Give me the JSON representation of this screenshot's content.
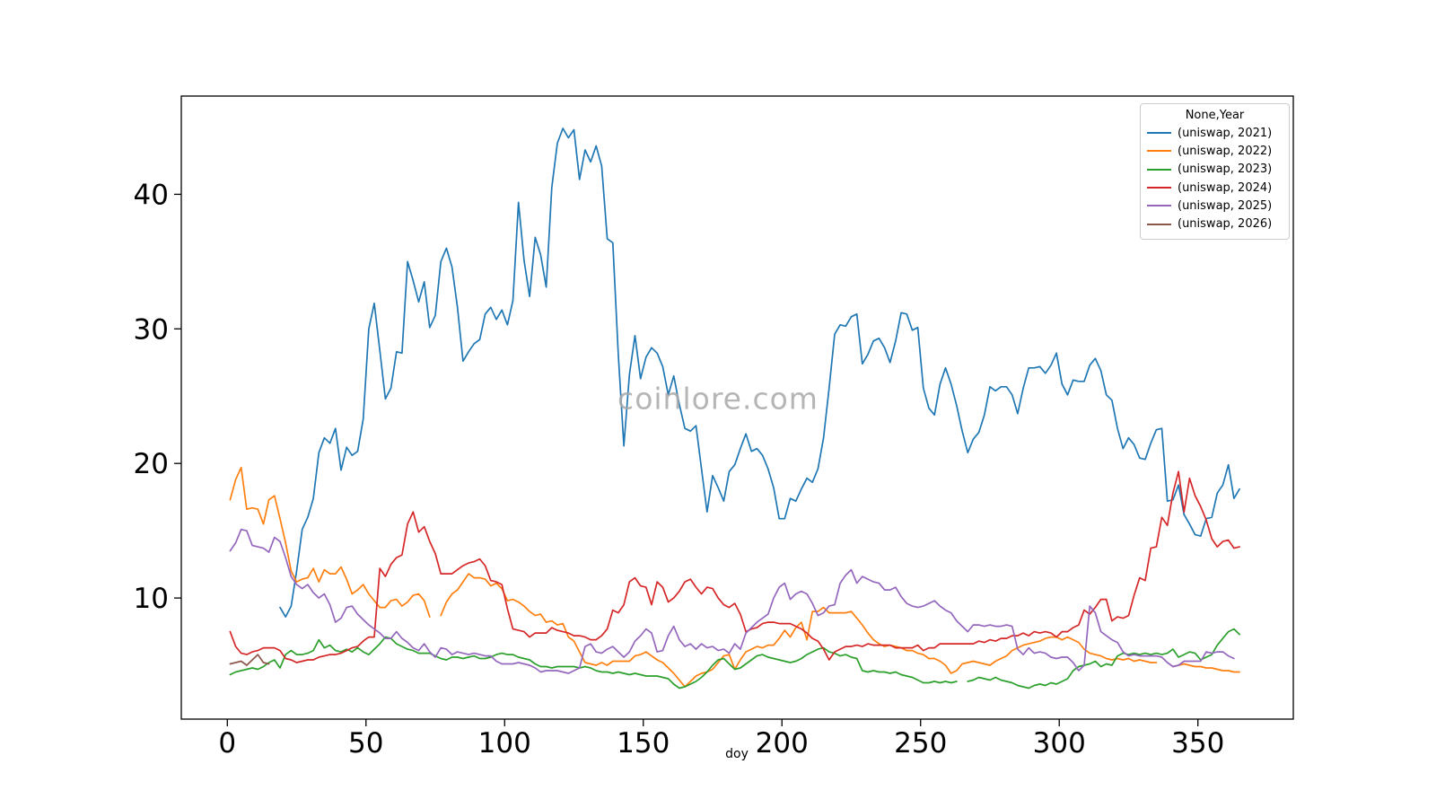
{
  "chart_data": {
    "type": "line",
    "title": "",
    "xlabel": "doy",
    "ylabel": "",
    "watermark": "coinlore.com",
    "grid": false,
    "xlim": [
      -16.6,
      384.4
    ],
    "ylim": [
      1.0,
      47.3
    ],
    "x_ticks": [
      0,
      50,
      100,
      150,
      200,
      250,
      300,
      350
    ],
    "y_ticks": [
      10,
      20,
      30,
      40
    ],
    "legend": {
      "title": "None,Year",
      "position": "upper right"
    },
    "series": [
      {
        "name": "(uniswap, 2021)",
        "color": "#1f77b4",
        "start_doy": 19,
        "doy_step": 2,
        "values": [
          9.3,
          8.6,
          9.4,
          12.0,
          15.1,
          16.0,
          17.4,
          20.8,
          21.9,
          21.5,
          22.6,
          19.5,
          21.2,
          20.6,
          20.9,
          23.3,
          30.0,
          31.9,
          28.4,
          24.8,
          25.6,
          28.3,
          28.2,
          35.0,
          33.6,
          32.0,
          33.5,
          30.1,
          31.0,
          35.0,
          36.0,
          34.6,
          31.6,
          27.6,
          28.3,
          28.9,
          29.2,
          31.1,
          31.6,
          30.7,
          31.4,
          30.3,
          32.1,
          39.4,
          35.1,
          32.4,
          36.8,
          35.5,
          33.1,
          40.5,
          43.8,
          44.9,
          44.2,
          44.8,
          41.1,
          43.3,
          42.4,
          43.6,
          42.1,
          36.7,
          36.4,
          28.1,
          21.3,
          26.6,
          29.5,
          26.3,
          27.9,
          28.6,
          28.2,
          27.2,
          25.1,
          26.5,
          24.4,
          22.6,
          22.4,
          22.8,
          19.6,
          16.4,
          19.1,
          18.2,
          17.2,
          19.4,
          19.9,
          21.1,
          22.2,
          20.9,
          21.1,
          20.6,
          19.6,
          18.2,
          15.9,
          15.9,
          17.4,
          17.2,
          18.1,
          18.9,
          18.6,
          19.6,
          21.9,
          25.6,
          29.6,
          30.3,
          30.2,
          30.9,
          31.1,
          27.4,
          28.1,
          29.1,
          29.3,
          28.6,
          27.5,
          29.1,
          31.2,
          31.1,
          29.9,
          30.1,
          25.6,
          24.1,
          23.6,
          25.9,
          27.1,
          25.9,
          24.3,
          22.4,
          20.8,
          21.8,
          22.3,
          23.6,
          25.7,
          25.4,
          25.7,
          25.7,
          25.1,
          23.7,
          25.6,
          27.1,
          27.1,
          27.2,
          26.7,
          27.3,
          28.2,
          25.9,
          25.1,
          26.2,
          26.1,
          26.1,
          27.3,
          27.8,
          26.9,
          25.1,
          24.7,
          22.6,
          21.1,
          21.9,
          21.4,
          20.4,
          20.3,
          21.5,
          22.5,
          22.6,
          17.2,
          17.3,
          18.4,
          16.2,
          15.5,
          14.7,
          14.6,
          15.9,
          16.0,
          17.8,
          18.4,
          19.9,
          17.4,
          18.1
        ]
      },
      {
        "name": "(uniswap, 2022)",
        "color": "#ff7f0e",
        "start_doy": 1,
        "doy_step": 2,
        "values": [
          17.3,
          18.8,
          19.7,
          16.6,
          16.7,
          16.6,
          15.5,
          17.3,
          17.6,
          15.9,
          14.1,
          12.0,
          11.2,
          11.4,
          11.5,
          12.2,
          11.2,
          12.1,
          11.8,
          11.8,
          12.3,
          11.4,
          10.3,
          10.6,
          11.0,
          10.3,
          9.8,
          9.3,
          9.3,
          9.8,
          9.9,
          9.4,
          9.7,
          10.2,
          10.3,
          9.8,
          8.6,
          null,
          8.7,
          9.7,
          10.3,
          10.6,
          11.2,
          11.8,
          11.5,
          11.5,
          11.4,
          10.9,
          11.1,
          10.7,
          9.8,
          9.9,
          9.7,
          9.4,
          9.0,
          8.7,
          8.8,
          8.2,
          8.3,
          8.0,
          8.1,
          7.1,
          6.8,
          6.0,
          5.2,
          5.1,
          5.0,
          5.2,
          5.0,
          5.3,
          5.3,
          5.3,
          5.3,
          5.7,
          5.8,
          6.0,
          5.7,
          5.4,
          5.2,
          4.8,
          4.4,
          3.9,
          3.4,
          3.8,
          4.2,
          4.4,
          4.5,
          4.7,
          5.2,
          5.7,
          5.8,
          4.7,
          5.4,
          6.0,
          6.2,
          6.4,
          6.3,
          6.5,
          6.5,
          7.0,
          7.6,
          7.1,
          7.8,
          8.2,
          6.9,
          9.0,
          9.0,
          9.3,
          8.9,
          8.9,
          8.9,
          8.9,
          9.0,
          8.5,
          8.0,
          7.4,
          6.9,
          6.6,
          6.4,
          6.5,
          6.4,
          6.3,
          6.1,
          6.1,
          5.9,
          5.8,
          5.5,
          5.5,
          5.3,
          5.0,
          4.4,
          4.6,
          5.1,
          5.2,
          5.3,
          5.2,
          5.1,
          5.0,
          5.3,
          5.5,
          5.7,
          6.1,
          6.3,
          6.5,
          6.6,
          6.7,
          6.8,
          7.0,
          7.1,
          7.1,
          6.9,
          7.1,
          6.9,
          6.7,
          6.2,
          5.9,
          5.8,
          5.7,
          5.5,
          5.4,
          5.5,
          5.4,
          5.5,
          5.3,
          5.4,
          5.3,
          5.2,
          5.2,
          null,
          null,
          4.9,
          5.0,
          5.1,
          5.0,
          4.9,
          4.9,
          4.8,
          4.8,
          4.7,
          4.6,
          4.6,
          4.5,
          4.5
        ]
      },
      {
        "name": "(uniswap, 2023)",
        "color": "#2ca02c",
        "start_doy": 1,
        "doy_step": 2,
        "values": [
          4.3,
          4.5,
          4.6,
          4.7,
          4.8,
          4.7,
          4.9,
          5.2,
          5.4,
          4.8,
          5.8,
          6.1,
          5.8,
          5.8,
          5.9,
          6.1,
          6.9,
          6.3,
          6.5,
          6.1,
          6.0,
          6.2,
          6.0,
          6.3,
          6.0,
          5.8,
          6.2,
          6.6,
          7.1,
          7.0,
          6.6,
          6.4,
          6.2,
          6.1,
          5.9,
          5.9,
          5.9,
          5.7,
          5.5,
          5.4,
          5.6,
          5.6,
          5.5,
          5.6,
          5.7,
          5.5,
          5.5,
          5.6,
          5.8,
          5.9,
          5.8,
          5.8,
          5.6,
          5.5,
          5.4,
          5.1,
          4.9,
          4.9,
          4.8,
          4.9,
          4.9,
          4.9,
          4.9,
          4.8,
          4.9,
          4.8,
          4.6,
          4.5,
          4.5,
          4.4,
          4.5,
          4.4,
          4.3,
          4.4,
          4.3,
          4.2,
          4.2,
          4.2,
          4.1,
          4.0,
          3.6,
          3.3,
          3.4,
          3.6,
          3.8,
          4.1,
          4.5,
          5.0,
          5.4,
          5.5,
          5.1,
          4.7,
          4.8,
          5.1,
          5.4,
          5.7,
          5.8,
          5.6,
          5.5,
          5.4,
          5.3,
          5.2,
          5.3,
          5.5,
          5.8,
          6.0,
          6.2,
          6.3,
          6.0,
          5.9,
          5.7,
          5.8,
          5.6,
          5.5,
          4.6,
          4.5,
          4.6,
          4.5,
          4.5,
          4.4,
          4.5,
          4.3,
          4.2,
          4.1,
          3.9,
          3.7,
          3.7,
          3.8,
          3.7,
          3.8,
          3.7,
          3.8,
          null,
          3.8,
          3.9,
          4.1,
          4.0,
          3.9,
          4.1,
          3.9,
          3.8,
          3.7,
          3.5,
          3.4,
          3.3,
          3.5,
          3.6,
          3.5,
          3.7,
          3.6,
          3.8,
          4.0,
          4.6,
          4.9,
          5.0,
          5.1,
          5.3,
          4.9,
          5.1,
          5.0,
          5.7,
          5.9,
          5.8,
          5.9,
          5.8,
          5.9,
          5.8,
          5.9,
          5.8,
          5.9,
          6.2,
          5.6,
          5.8,
          6.0,
          5.9,
          5.4,
          5.6,
          5.8,
          6.5,
          7.0,
          7.5,
          7.7,
          7.3
        ]
      },
      {
        "name": "(uniswap, 2024)",
        "color": "#d62728",
        "start_doy": 1,
        "doy_step": 2,
        "values": [
          7.5,
          6.4,
          5.9,
          5.8,
          6.0,
          6.1,
          6.3,
          6.3,
          6.3,
          6.1,
          5.5,
          5.4,
          5.2,
          5.3,
          5.4,
          5.4,
          5.6,
          5.7,
          5.8,
          5.8,
          5.9,
          6.1,
          6.3,
          6.4,
          6.8,
          7.1,
          7.1,
          12.2,
          11.6,
          12.5,
          13.0,
          13.2,
          15.5,
          16.4,
          14.9,
          15.3,
          14.2,
          13.3,
          11.8,
          11.8,
          11.8,
          12.1,
          12.4,
          12.6,
          12.7,
          12.9,
          12.4,
          11.3,
          11.2,
          11.0,
          9.2,
          7.7,
          7.6,
          7.5,
          7.1,
          7.4,
          7.4,
          7.4,
          7.8,
          7.6,
          7.5,
          7.4,
          7.2,
          7.2,
          7.1,
          6.9,
          6.9,
          7.2,
          7.7,
          9.1,
          8.9,
          9.5,
          11.2,
          11.5,
          10.9,
          10.8,
          9.5,
          11.2,
          10.8,
          9.7,
          10.0,
          10.5,
          11.2,
          11.4,
          10.8,
          10.3,
          10.8,
          10.7,
          10.0,
          9.5,
          9.3,
          9.6,
          8.8,
          7.5,
          7.7,
          7.8,
          8.1,
          8.2,
          8.2,
          8.1,
          8.1,
          8.1,
          7.9,
          7.7,
          7.4,
          7.0,
          6.8,
          6.2,
          5.4,
          6.0,
          6.2,
          6.4,
          6.4,
          6.5,
          6.4,
          6.6,
          6.5,
          6.5,
          6.5,
          6.5,
          6.3,
          6.3,
          6.3,
          6.3,
          6.5,
          6.1,
          6.3,
          6.3,
          6.6,
          6.6,
          6.6,
          6.6,
          6.6,
          6.6,
          6.6,
          6.8,
          6.7,
          6.9,
          6.8,
          7.0,
          7.0,
          7.2,
          7.2,
          7.4,
          7.2,
          7.5,
          7.4,
          7.5,
          7.4,
          7.1,
          7.5,
          7.5,
          7.8,
          8.0,
          9.1,
          8.8,
          9.3,
          9.9,
          9.9,
          8.3,
          8.6,
          8.5,
          8.7,
          10.2,
          11.5,
          11.3,
          13.7,
          13.8,
          16.0,
          15.4,
          17.8,
          19.4,
          16.4,
          18.9,
          17.6,
          16.8,
          15.8,
          14.4,
          13.8,
          14.2,
          14.3,
          13.7,
          13.8
        ]
      },
      {
        "name": "(uniswap, 2025)",
        "color": "#9467bd",
        "start_doy": 1,
        "doy_step": 2,
        "values": [
          13.5,
          14.1,
          15.1,
          15.0,
          13.9,
          13.8,
          13.7,
          13.4,
          14.5,
          14.2,
          13.0,
          11.6,
          11.0,
          10.7,
          11.0,
          10.4,
          10.0,
          10.3,
          9.5,
          8.2,
          8.5,
          9.3,
          9.4,
          8.8,
          8.4,
          8.0,
          7.7,
          7.4,
          7.0,
          7.0,
          7.5,
          7.0,
          6.7,
          6.3,
          6.1,
          6.6,
          6.0,
          5.6,
          6.3,
          6.2,
          5.8,
          6.0,
          5.9,
          5.8,
          5.9,
          5.8,
          5.7,
          5.7,
          5.3,
          5.1,
          5.1,
          5.1,
          5.2,
          5.1,
          5.0,
          4.8,
          4.5,
          4.6,
          4.6,
          4.6,
          4.5,
          4.4,
          4.6,
          4.8,
          6.4,
          6.6,
          6.0,
          5.9,
          6.2,
          6.4,
          6.0,
          5.6,
          6.0,
          6.8,
          7.2,
          7.7,
          7.4,
          6.0,
          6.1,
          7.2,
          7.9,
          6.9,
          6.4,
          6.6,
          6.2,
          6.6,
          6.3,
          6.4,
          6.1,
          6.2,
          5.9,
          6.6,
          6.2,
          7.4,
          7.8,
          8.2,
          8.5,
          8.8,
          10.0,
          10.8,
          11.1,
          9.9,
          10.3,
          10.5,
          10.3,
          9.6,
          8.7,
          8.9,
          9.4,
          9.5,
          11.1,
          11.7,
          12.1,
          11.1,
          11.6,
          11.4,
          11.2,
          11.1,
          10.6,
          10.6,
          10.8,
          10.1,
          9.6,
          9.4,
          9.3,
          9.4,
          9.6,
          9.8,
          9.4,
          9.1,
          8.9,
          8.3,
          7.9,
          7.5,
          8.0,
          8.0,
          7.9,
          8.0,
          7.9,
          7.9,
          8.0,
          7.9,
          6.2,
          5.8,
          6.3,
          5.9,
          6.0,
          5.9,
          5.6,
          5.5,
          5.6,
          5.6,
          5.2,
          4.6,
          5.0,
          9.4,
          8.9,
          7.5,
          7.2,
          6.9,
          6.7,
          6.0,
          5.7,
          5.8,
          5.7,
          5.7,
          5.7,
          5.7,
          5.6,
          5.2,
          4.9,
          5.0,
          5.3,
          5.3,
          5.3,
          5.3,
          6.0,
          5.9,
          6.0,
          6.0,
          5.7,
          5.5
        ]
      },
      {
        "name": "(uniswap, 2026)",
        "color": "#8c564b",
        "start_doy": 1,
        "doy_step": 2,
        "values": [
          5.1,
          5.2,
          5.3,
          5.0,
          5.4,
          5.8,
          5.2,
          5.1
        ]
      }
    ]
  }
}
